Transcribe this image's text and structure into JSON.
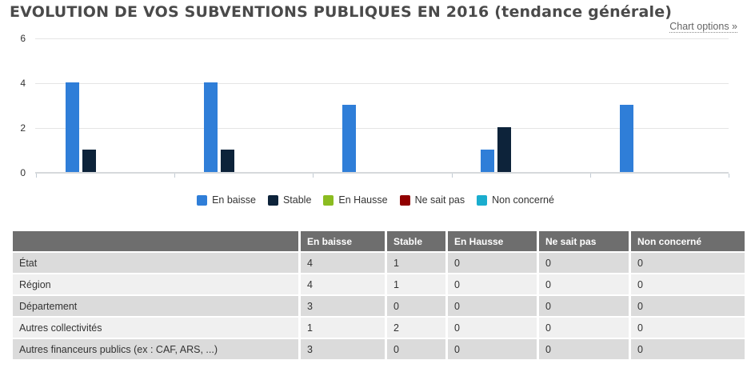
{
  "header": {
    "title": "EVOLUTION DE VOS SUBVENTIONS PUBLIQUES EN 2016 (tendance générale)",
    "chart_options_label": "Chart options »"
  },
  "chart_data": {
    "type": "bar",
    "title": "EVOLUTION DE VOS SUBVENTIONS PUBLIQUES EN 2016 (tendance générale)",
    "categories": [
      "État",
      "Région",
      "Département",
      "Autres collectivités",
      "Autres financeurs publics (ex : CAF, ARS, ...)"
    ],
    "series": [
      {
        "name": "En baisse",
        "color": "#2f7ed8",
        "values": [
          4,
          4,
          3,
          1,
          3
        ]
      },
      {
        "name": "Stable",
        "color": "#0d233a",
        "values": [
          1,
          1,
          0,
          2,
          0
        ]
      },
      {
        "name": "En Hausse",
        "color": "#8bbc21",
        "values": [
          0,
          0,
          0,
          0,
          0
        ]
      },
      {
        "name": "Ne sait pas",
        "color": "#910000",
        "values": [
          0,
          0,
          0,
          0,
          0
        ]
      },
      {
        "name": "Non concerné",
        "color": "#1aadce",
        "values": [
          0,
          0,
          0,
          0,
          0
        ]
      }
    ],
    "xlabel": "",
    "ylabel": "",
    "ylim": [
      0,
      6
    ],
    "yticks": [
      0,
      2,
      4,
      6
    ],
    "grid": true,
    "legend_position": "bottom",
    "x_category_labels_visible": false
  },
  "table": {
    "columns": [
      "",
      "En baisse",
      "Stable",
      "En Hausse",
      "Ne sait pas",
      "Non concerné"
    ],
    "rows": [
      {
        "label": "État",
        "values": [
          4,
          1,
          0,
          0,
          0
        ]
      },
      {
        "label": "Région",
        "values": [
          4,
          1,
          0,
          0,
          0
        ]
      },
      {
        "label": "Département",
        "values": [
          3,
          0,
          0,
          0,
          0
        ]
      },
      {
        "label": "Autres collectivités",
        "values": [
          1,
          2,
          0,
          0,
          0
        ]
      },
      {
        "label": "Autres financeurs publics (ex : CAF, ARS, ...)",
        "values": [
          3,
          0,
          0,
          0,
          0
        ]
      }
    ]
  }
}
